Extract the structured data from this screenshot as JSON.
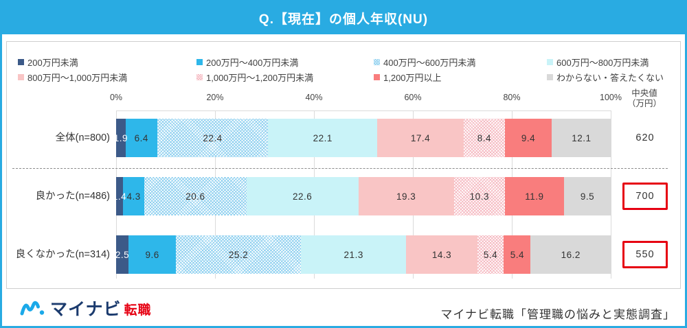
{
  "header": {
    "title": "Q.【現在】の個人年収(NU)"
  },
  "colors": {
    "accent_blue": "#29ABE2",
    "highlight_box_red": "#E60012",
    "gridline": "#DADADA"
  },
  "legend": [
    {
      "label": "200万円未満",
      "color": "#3C5A88",
      "pattern": "solid"
    },
    {
      "label": "200万円～400万円未満",
      "color": "#2EB7EA",
      "pattern": "solid"
    },
    {
      "label": "400万円～600万円未満",
      "color": "#8CCFEF",
      "pattern": "mesh"
    },
    {
      "label": "600万円～800万円未満",
      "color": "#C9F3F8",
      "pattern": "solid"
    },
    {
      "label": "800万円～1,000万円未満",
      "color": "#F9C5C5",
      "pattern": "solid"
    },
    {
      "label": "1,000万円～1,200万円未満",
      "color": "#F5B8C0",
      "pattern": "mesh"
    },
    {
      "label": "1,200万円以上",
      "color": "#F97D7D",
      "pattern": "solid"
    },
    {
      "label": "わからない・答えたくない",
      "color": "#D9D9D9",
      "pattern": "solid"
    }
  ],
  "axis": {
    "ticks": [
      "0%",
      "20%",
      "40%",
      "60%",
      "80%",
      "100%"
    ],
    "median_line1": "中央値",
    "median_line2": "（万円）"
  },
  "chart_data": {
    "type": "bar",
    "stacked": true,
    "orientation": "horizontal",
    "title": "Q.【現在】の個人年収(NU)",
    "xlim": [
      0,
      100
    ],
    "categories": [
      "全体(n=800)",
      "良かった(n=486)",
      "良くなかった(n=314)"
    ],
    "series": [
      {
        "name": "200万円未満",
        "values": [
          1.9,
          1.4,
          2.5
        ]
      },
      {
        "name": "200万円～400万円未満",
        "values": [
          6.4,
          4.3,
          9.6
        ]
      },
      {
        "name": "400万円～600万円未満",
        "values": [
          22.4,
          20.6,
          25.2
        ]
      },
      {
        "name": "600万円～800万円未満",
        "values": [
          22.1,
          22.6,
          21.3
        ]
      },
      {
        "name": "800万円～1,000万円未満",
        "values": [
          17.4,
          19.3,
          14.3
        ]
      },
      {
        "name": "1,000万円～1,200万円未満",
        "values": [
          8.4,
          10.3,
          5.4
        ]
      },
      {
        "name": "1,200万円以上",
        "values": [
          9.4,
          11.9,
          5.4
        ]
      },
      {
        "name": "わからない・答えたくない",
        "values": [
          12.1,
          9.5,
          16.2
        ]
      }
    ],
    "medians": [
      {
        "value": "620",
        "highlighted": false
      },
      {
        "value": "700",
        "highlighted": true
      },
      {
        "value": "550",
        "highlighted": true
      }
    ]
  },
  "footer": {
    "logo_brand": "マイナビ",
    "logo_suffix": "転職",
    "source": "マイナビ転職「管理職の悩みと実態調査」"
  }
}
